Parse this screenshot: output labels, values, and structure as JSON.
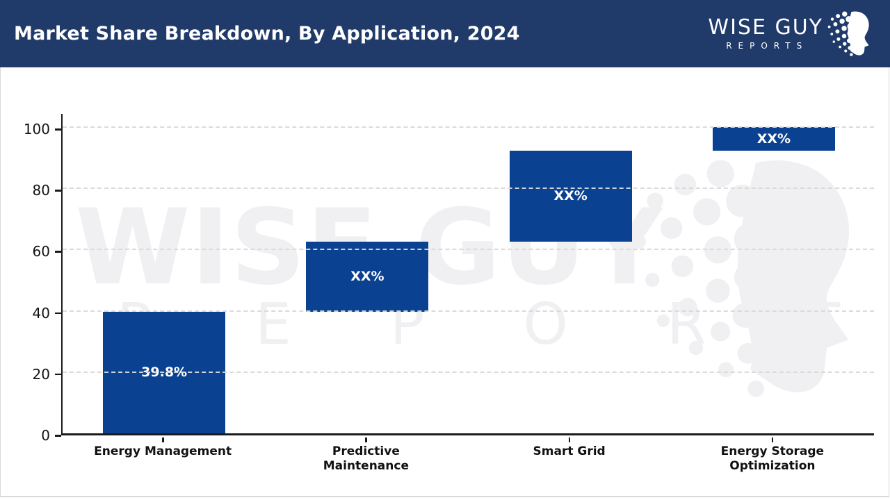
{
  "header": {
    "title": "Market Share Breakdown, By Application, 2024",
    "logo": {
      "line1": "WISE GUY",
      "line2": "REPORTS"
    }
  },
  "watermark": {
    "line1": "WISE GUY",
    "line2": "R E P O R T S"
  },
  "colors": {
    "header_bg": "#203a69",
    "bar": "#0a4191",
    "bar_label": "#ffffff",
    "grid": "#d9d9d9",
    "axis": "#1a1a1a",
    "watermark": "#f0f0f3",
    "edge": "#d8d8d8"
  },
  "chart_data": {
    "type": "bar",
    "subtype": "waterfall-stacked-share",
    "title": "Market Share Breakdown, By Application, 2024",
    "categories": [
      "Energy Management",
      "Predictive\nMaintenance",
      "Smart Grid",
      "Energy Storage\nOptimization"
    ],
    "segments": [
      {
        "category": "Energy Management",
        "start": 0,
        "end": 39.8,
        "value": 39.8,
        "label": "39.8%"
      },
      {
        "category": "Predictive Maintenance",
        "start": 39.8,
        "end": 62.7,
        "value": 22.9,
        "label": "XX%"
      },
      {
        "category": "Smart Grid",
        "start": 62.7,
        "end": 92.3,
        "value": 29.6,
        "label": "XX%"
      },
      {
        "category": "Energy Storage Optimization",
        "start": 92.3,
        "end": 100,
        "value": 7.7,
        "label": "XX%"
      }
    ],
    "xlabel": "",
    "ylabel": "",
    "yticks": [
      0,
      20,
      40,
      60,
      80,
      100
    ],
    "ylim": [
      0,
      105
    ],
    "grid": "horizontal-dashed",
    "legend": "none"
  }
}
